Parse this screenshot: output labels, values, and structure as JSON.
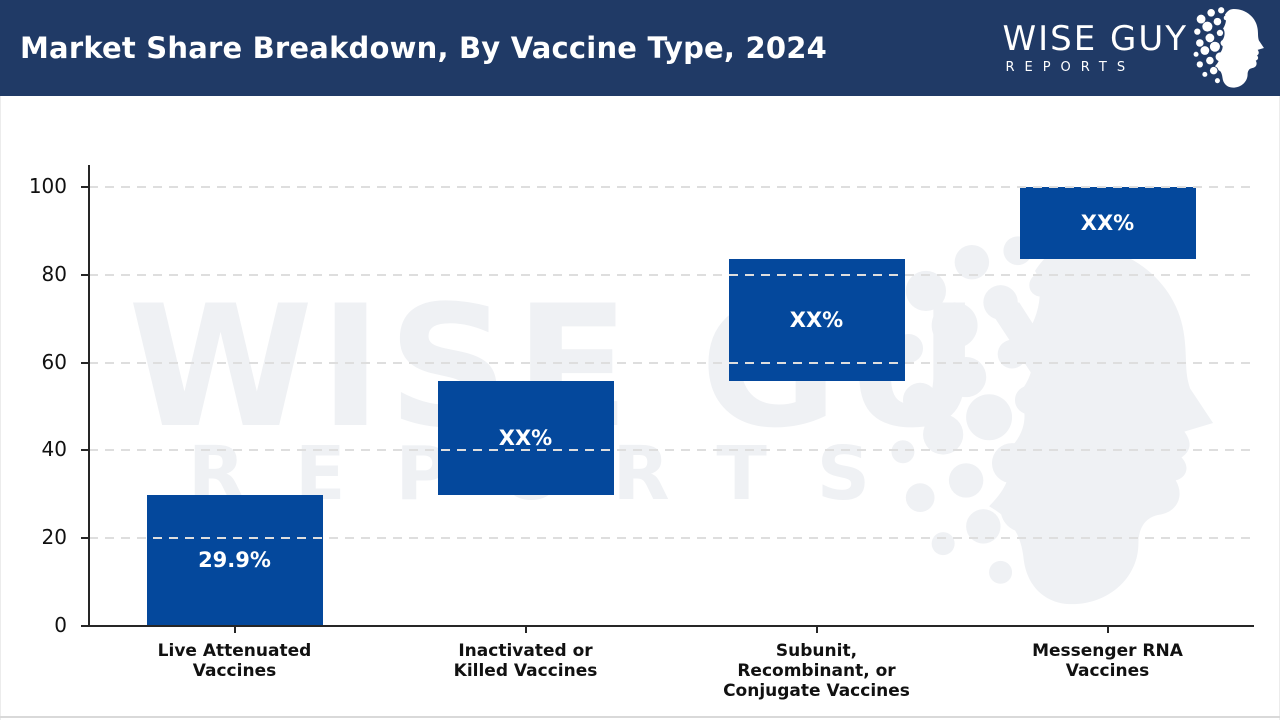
{
  "header": {
    "title": "Market Share Breakdown, By Vaccine Type, 2024",
    "logo": {
      "line1": "WISE GUY",
      "line2": "REPORTS"
    }
  },
  "watermark": {
    "line1": "WISE GUY",
    "line2": "REPORTS"
  },
  "colors": {
    "header_bg": "#203A66",
    "bar": "#04489C",
    "grid": "#DEDEDE",
    "axis": "#262626",
    "watermark": "#EFF1F4",
    "title_text": "#FFFFFF",
    "bar_label_text": "#FFFFFF"
  },
  "chart_data": {
    "type": "bar",
    "subtype": "waterfall",
    "title": "Market Share Breakdown, By Vaccine Type, 2024",
    "xlabel": "",
    "ylabel": "",
    "ylim": [
      0,
      105
    ],
    "yticks": [
      0,
      20,
      40,
      60,
      80,
      100
    ],
    "grid": "horizontal-dashed, drawn above bars",
    "legend": "none",
    "categories": [
      "Live Attenuated Vaccines",
      "Inactivated or Killed Vaccines",
      "Subunit, Recombinant, or Conjugate Vaccines",
      "Messenger RNA Vaccines"
    ],
    "segments": [
      {
        "category_lines": [
          "Live Attenuated",
          "Vaccines"
        ],
        "start": 0,
        "end": 29.9,
        "label": "29.9%"
      },
      {
        "category_lines": [
          "Inactivated or",
          "Killed Vaccines"
        ],
        "start": 29.9,
        "end": 55.7,
        "label": "XX%"
      },
      {
        "category_lines": [
          "Subunit,",
          "Recombinant, or",
          "Conjugate Vaccines"
        ],
        "start": 55.7,
        "end": 83.6,
        "label": "XX%"
      },
      {
        "category_lines": [
          "Messenger RNA",
          "Vaccines"
        ],
        "start": 83.6,
        "end": 100,
        "label": "XX%"
      }
    ]
  }
}
